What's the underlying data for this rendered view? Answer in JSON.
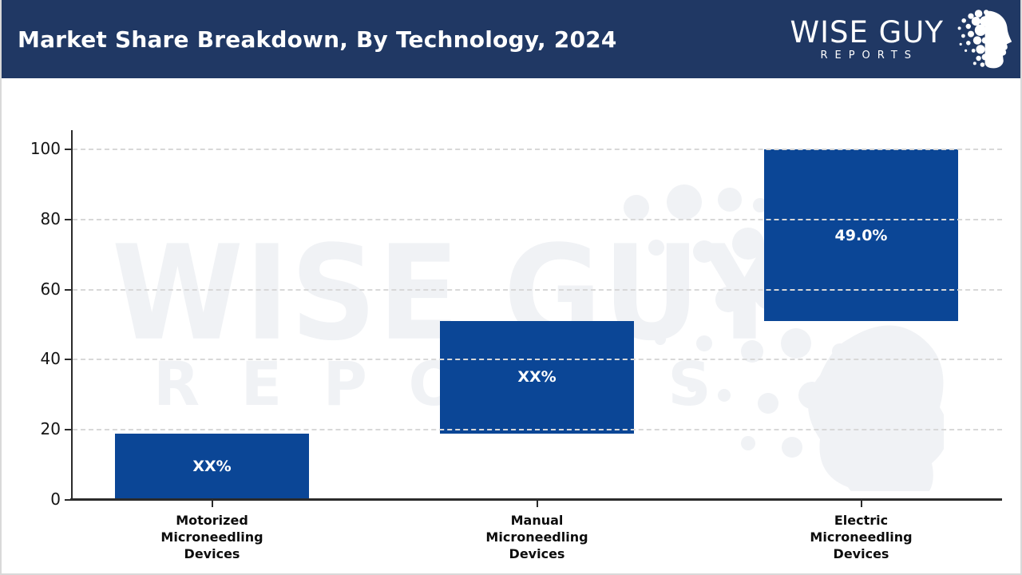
{
  "header": {
    "title": "Market Share Breakdown, By Technology, 2024",
    "logo": {
      "brand": "WISE GUY",
      "sub": "REPORTS",
      "face_icon": "dotted-face-profile"
    }
  },
  "watermark": {
    "line1": "WISE GUY",
    "line2": "REPORTS"
  },
  "colors": {
    "header_bg": "#203864",
    "bar": "#0b4696",
    "axis": "#2b2b2b",
    "grid": "#d8d8d8",
    "tick_text": "#141414",
    "bar_label_text": "#ffffff",
    "watermark": "#f0f2f5"
  },
  "chart_data": {
    "type": "bar",
    "subtype": "waterfall-stacked",
    "title": "Market Share Breakdown, By Technology, 2024",
    "xlabel": "",
    "ylabel": "",
    "ylim": [
      0,
      105
    ],
    "yticks": [
      0,
      20,
      40,
      60,
      80,
      100
    ],
    "grid": "horizontal-dashed",
    "legend": "none",
    "categories": [
      "Motorized\nMicroneedling\nDevices",
      "Manual\nMicroneedling\nDevices",
      "Electric\nMicroneedling\nDevices"
    ],
    "segments": [
      {
        "category": "Motorized Microneedling Devices",
        "start": 0,
        "end": 19,
        "value": 19,
        "label": "XX%",
        "value_masked": true
      },
      {
        "category": "Manual Microneedling Devices",
        "start": 19,
        "end": 51,
        "value": 32,
        "label": "XX%",
        "value_masked": true
      },
      {
        "category": "Electric Microneedling Devices",
        "start": 51,
        "end": 100,
        "value": 49,
        "label": "49.0%",
        "value_masked": false
      }
    ]
  }
}
